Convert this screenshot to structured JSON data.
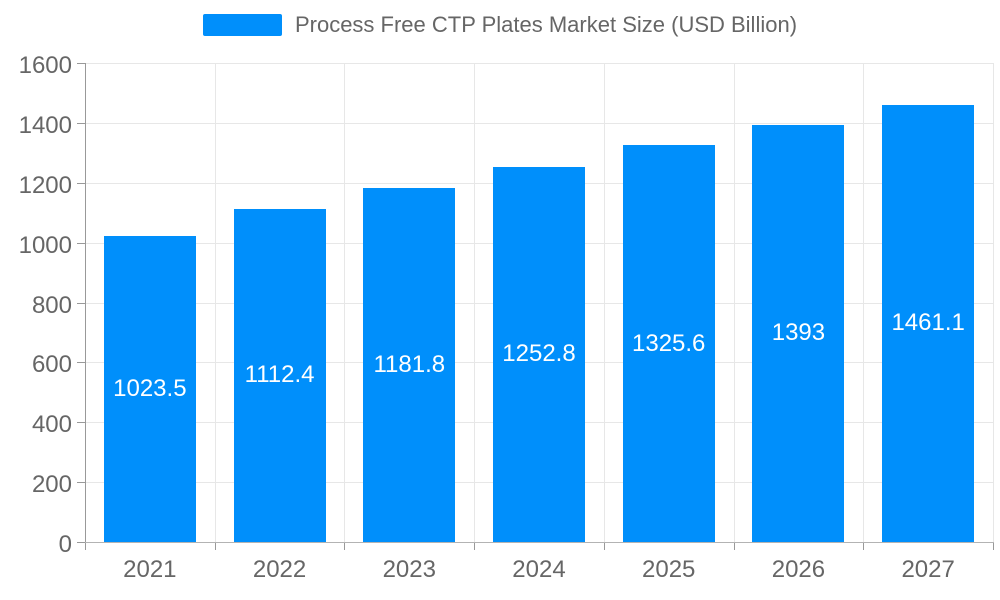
{
  "chart_data": {
    "type": "bar",
    "title": "Process Free CTP Plates Market Size (USD Billion)",
    "categories": [
      "2021",
      "2022",
      "2023",
      "2024",
      "2025",
      "2026",
      "2027"
    ],
    "values": [
      1023.5,
      1112.4,
      1181.8,
      1252.8,
      1325.6,
      1393,
      1461.1
    ],
    "value_labels": [
      "1023.5",
      "1112.4",
      "1181.8",
      "1252.8",
      "1325.6",
      "1393",
      "1461.1"
    ],
    "series_name": "Process Free CTP Plates Market Size (USD Billion)",
    "xlabel": "",
    "ylabel": "",
    "ylim": [
      0,
      1600
    ],
    "yticks": [
      0,
      200,
      400,
      600,
      800,
      1000,
      1200,
      1400,
      1600
    ],
    "grid": true,
    "legend_position": "top",
    "bar_color": "#008FFB",
    "value_label_color": "#ffffff",
    "axis_label_color": "#666666",
    "grid_color": "#e7e7e7",
    "axis_line_color": "#999999"
  }
}
